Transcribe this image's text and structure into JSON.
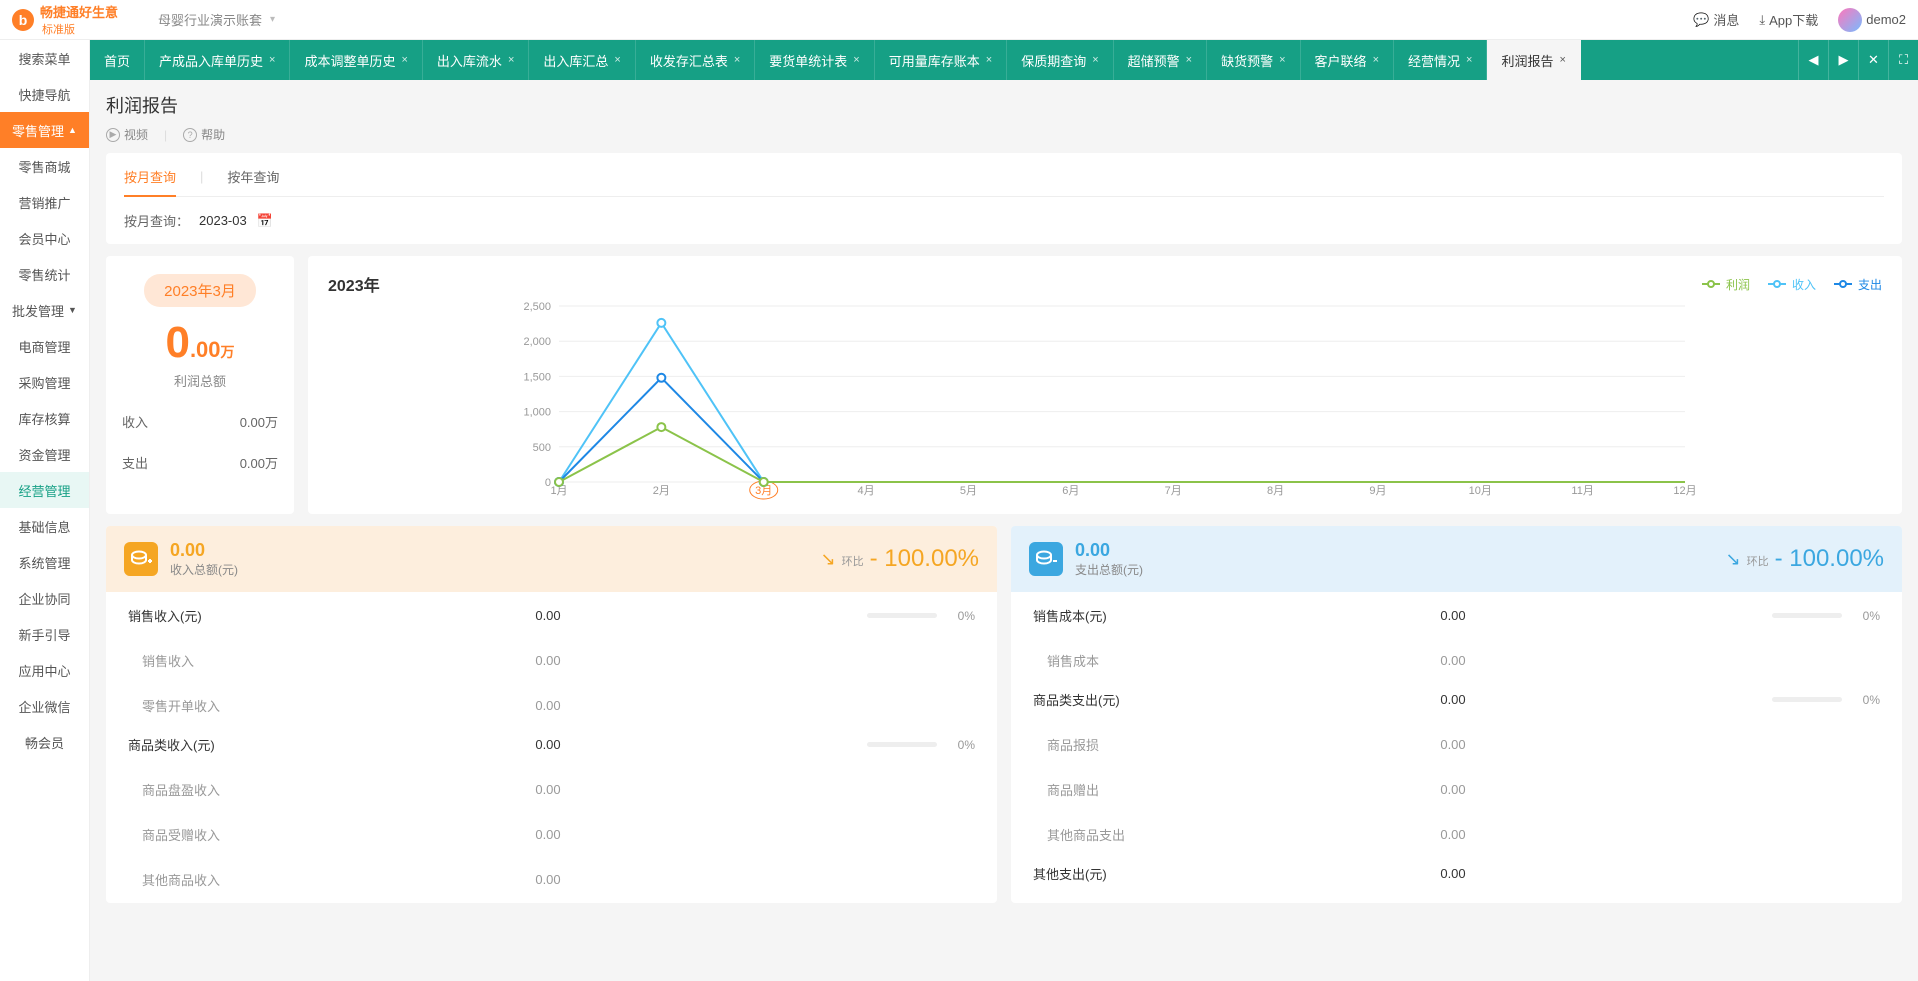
{
  "brand": {
    "name": "畅捷通好生意",
    "edition": "标准版"
  },
  "account_selector": "母婴行业演示账套",
  "top_right": {
    "message": "消息",
    "app_download": "App下载",
    "user": "demo2"
  },
  "sidebar": [
    {
      "label": "搜索菜单",
      "type": "item"
    },
    {
      "label": "快捷导航",
      "type": "item"
    },
    {
      "label": "零售管理",
      "type": "group",
      "state": "active"
    },
    {
      "label": "零售商城",
      "type": "item"
    },
    {
      "label": "营销推广",
      "type": "item"
    },
    {
      "label": "会员中心",
      "type": "item"
    },
    {
      "label": "零售统计",
      "type": "item"
    },
    {
      "label": "批发管理",
      "type": "group"
    },
    {
      "label": "电商管理",
      "type": "item"
    },
    {
      "label": "采购管理",
      "type": "item"
    },
    {
      "label": "库存核算",
      "type": "item"
    },
    {
      "label": "资金管理",
      "type": "item"
    },
    {
      "label": "经营管理",
      "type": "item",
      "state": "highlight"
    },
    {
      "label": "基础信息",
      "type": "item"
    },
    {
      "label": "系统管理",
      "type": "item"
    },
    {
      "label": "企业协同",
      "type": "item"
    },
    {
      "label": "新手引导",
      "type": "item"
    },
    {
      "label": "应用中心",
      "type": "item"
    },
    {
      "label": "企业微信",
      "type": "item"
    },
    {
      "label": "畅会员",
      "type": "item"
    }
  ],
  "tabs": [
    {
      "label": "首页",
      "closable": false
    },
    {
      "label": "产成品入库单历史",
      "closable": true
    },
    {
      "label": "成本调整单历史",
      "closable": true
    },
    {
      "label": "出入库流水",
      "closable": true
    },
    {
      "label": "出入库汇总",
      "closable": true
    },
    {
      "label": "收发存汇总表",
      "closable": true
    },
    {
      "label": "要货单统计表",
      "closable": true
    },
    {
      "label": "可用量库存账本",
      "closable": true
    },
    {
      "label": "保质期查询",
      "closable": true
    },
    {
      "label": "超储预警",
      "closable": true
    },
    {
      "label": "缺货预警",
      "closable": true
    },
    {
      "label": "客户联络",
      "closable": true
    },
    {
      "label": "经营情况",
      "closable": true
    },
    {
      "label": "利润报告",
      "closable": true,
      "active": true
    }
  ],
  "page": {
    "title": "利润报告",
    "help": {
      "video": "视频",
      "help": "帮助"
    },
    "query_tabs": {
      "by_month": "按月查询",
      "by_year": "按年查询"
    },
    "date_label": "按月查询：",
    "date_value": "2023-03"
  },
  "summary": {
    "month_label": "2023年3月",
    "profit_int": "0",
    "profit_dec": ".00",
    "profit_unit": "万",
    "profit_caption": "利润总额",
    "income_label": "收入",
    "income_value": "0.00万",
    "expense_label": "支出",
    "expense_value": "0.00万"
  },
  "chart": {
    "title": "2023年",
    "legend": {
      "profit": "利润",
      "income": "收入",
      "expense": "支出"
    },
    "colors": {
      "profit": "#8bc34a",
      "income": "#4fc3f7",
      "expense": "#1e88e5"
    },
    "y_ticks": [
      0,
      500,
      1000,
      1500,
      2000,
      2500
    ],
    "x_labels": [
      "1月",
      "2月",
      "3月",
      "4月",
      "5月",
      "6月",
      "7月",
      "8月",
      "9月",
      "10月",
      "11月",
      "12月"
    ],
    "highlight_x_index": 2,
    "series": {
      "profit": [
        0,
        780,
        0,
        0,
        0,
        0,
        0,
        0,
        0,
        0,
        0,
        0
      ],
      "income": [
        0,
        2260,
        0,
        0,
        0,
        0,
        0,
        0,
        0,
        0,
        0,
        0
      ],
      "expense": [
        0,
        1480,
        0,
        0,
        0,
        0,
        0,
        0,
        0,
        0,
        0,
        0
      ]
    },
    "grid_color": "#eeeeee",
    "axis_color": "#cccccc",
    "label_color": "#999999"
  },
  "income_panel": {
    "total_value": "0.00",
    "total_label": "收入总额(元)",
    "mom_label": "环比",
    "mom_value": "- 100.00%",
    "rows": [
      {
        "name": "销售收入(元)",
        "value": "0.00",
        "pct": "0%",
        "level": 0
      },
      {
        "name": "销售收入",
        "value": "0.00",
        "level": 1
      },
      {
        "name": "零售开单收入",
        "value": "0.00",
        "level": 1
      },
      {
        "name": "商品类收入(元)",
        "value": "0.00",
        "pct": "0%",
        "level": 0
      },
      {
        "name": "商品盘盈收入",
        "value": "0.00",
        "level": 1
      },
      {
        "name": "商品受赠收入",
        "value": "0.00",
        "level": 1
      },
      {
        "name": "其他商品收入",
        "value": "0.00",
        "level": 1
      }
    ]
  },
  "expense_panel": {
    "total_value": "0.00",
    "total_label": "支出总额(元)",
    "mom_label": "环比",
    "mom_value": "- 100.00%",
    "rows": [
      {
        "name": "销售成本(元)",
        "value": "0.00",
        "pct": "0%",
        "level": 0
      },
      {
        "name": "销售成本",
        "value": "0.00",
        "level": 1
      },
      {
        "name": "商品类支出(元)",
        "value": "0.00",
        "pct": "0%",
        "level": 0
      },
      {
        "name": "商品报损",
        "value": "0.00",
        "level": 1
      },
      {
        "name": "商品赠出",
        "value": "0.00",
        "level": 1
      },
      {
        "name": "其他商品支出",
        "value": "0.00",
        "level": 1
      },
      {
        "name": "其他支出(元)",
        "value": "0.00",
        "level": 0
      }
    ]
  }
}
